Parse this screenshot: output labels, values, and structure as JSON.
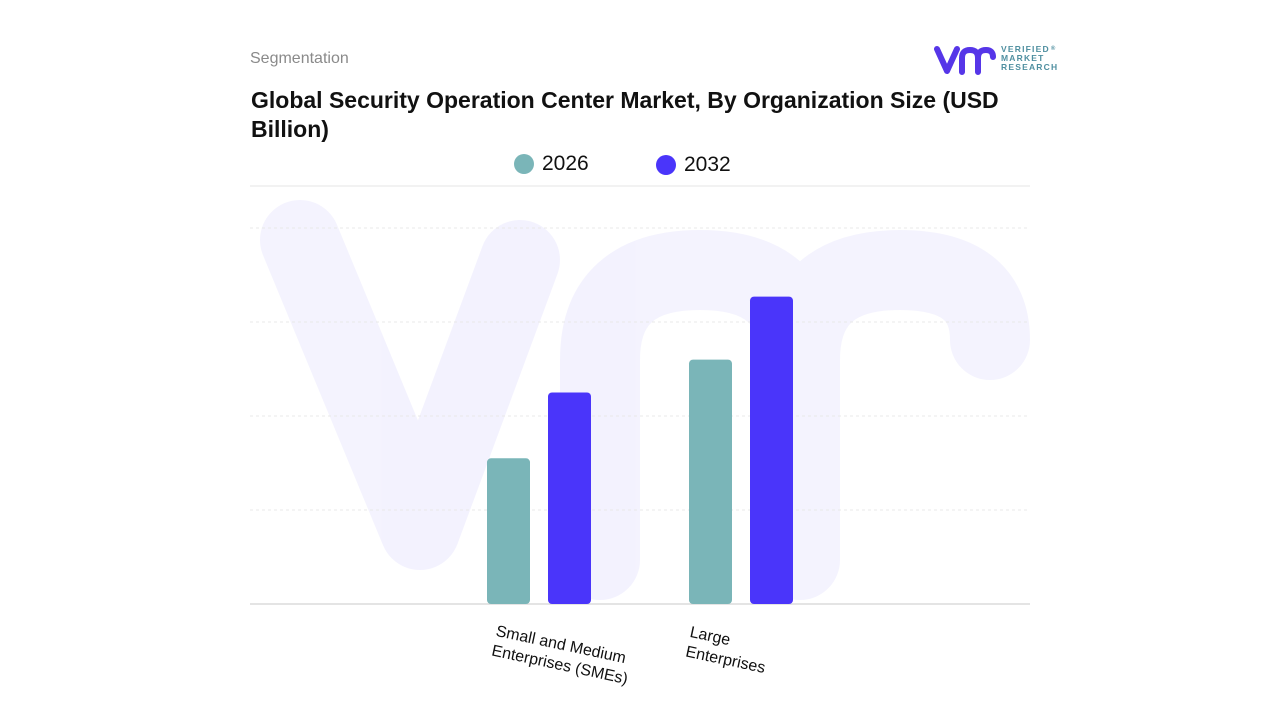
{
  "header": {
    "section_label": "Segmentation",
    "title": "Global Security Operation Center Market, By Organization Size (USD Billion)"
  },
  "logo": {
    "icon": "vmr-logo-mark",
    "line1": "VERIFIED",
    "line2": "MARKET",
    "line3": "RESEARCH",
    "registered": "®",
    "colors": {
      "mark": "#5636e8",
      "text": "#4f8fa0"
    }
  },
  "chart_data": {
    "type": "bar",
    "title": "Global Security Operation Center Market, By Organization Size (USD Billion)",
    "xlabel": "",
    "ylabel": "",
    "categories": [
      "Small and Medium\nEnterprises (SMEs)",
      "Large\nEnterprises"
    ],
    "series": [
      {
        "name": "2026",
        "color": "#7ab5b8",
        "values": [
          15.5,
          26.0
        ]
      },
      {
        "name": "2032",
        "color": "#4a35fa",
        "values": [
          22.5,
          32.7
        ]
      }
    ],
    "ylim": [
      0,
      40
    ],
    "grid": true,
    "legend": "top-center",
    "watermark": "vmr"
  }
}
